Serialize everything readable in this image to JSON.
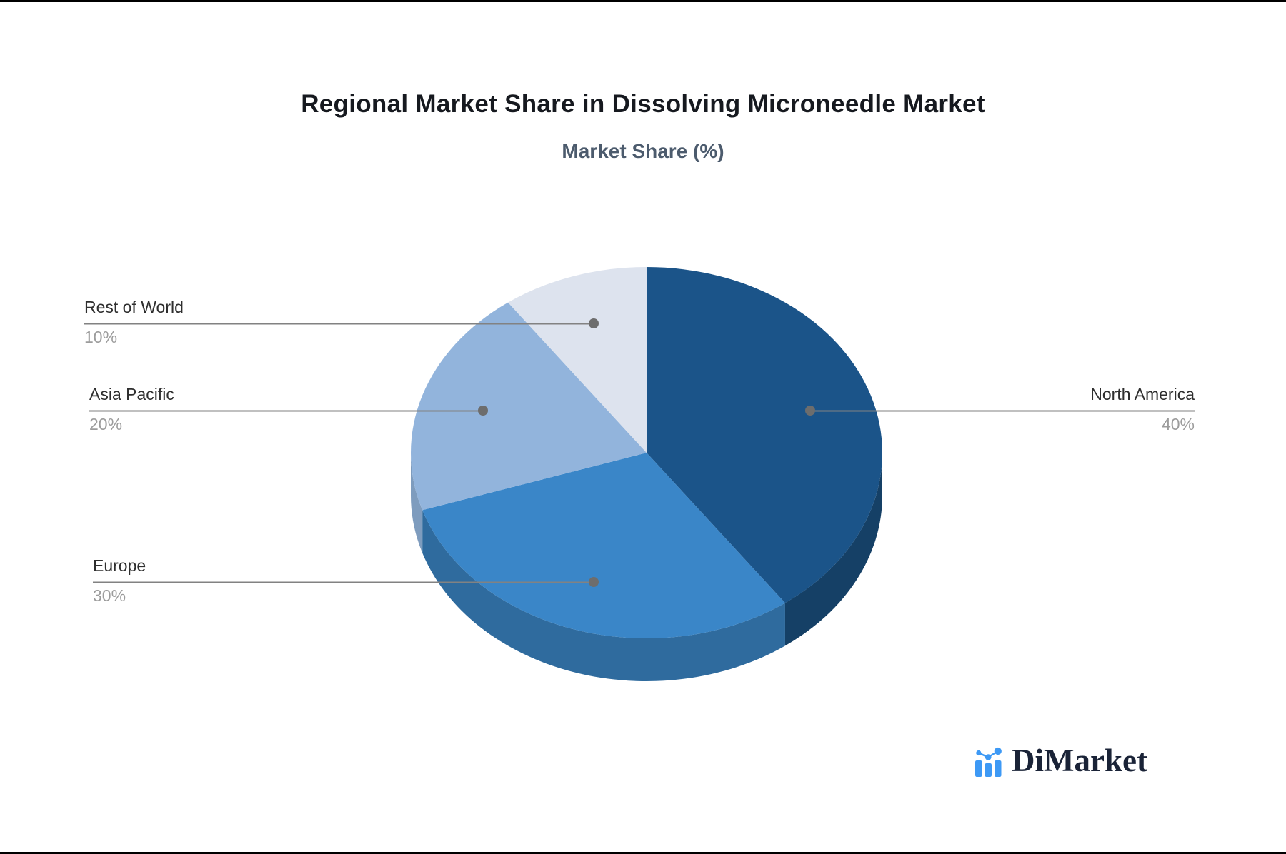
{
  "page": {
    "title": "Regional Market Share in Dissolving Microneedle Market",
    "subtitle": "Market Share (%)"
  },
  "chart_data": {
    "type": "pie",
    "title": "Regional Market Share in Dissolving Microneedle Market",
    "subtitle": "Market Share (%)",
    "unit": "%",
    "effect": "3d",
    "direction": "clockwise",
    "start_angle_deg": 0,
    "legend_position": "callout-labels",
    "slices": [
      {
        "label": "North America",
        "value": 40,
        "display": "40%",
        "color": "#1b5489",
        "side_color": "#154066",
        "label_side": "right"
      },
      {
        "label": "Europe",
        "value": 30,
        "display": "30%",
        "color": "#3a86c8",
        "side_color": "#2f6b9e",
        "label_side": "left"
      },
      {
        "label": "Asia Pacific",
        "value": 20,
        "display": "20%",
        "color": "#92b4dc",
        "side_color": "#7e9cbe",
        "label_side": "left"
      },
      {
        "label": "Rest of World",
        "value": 10,
        "display": "10%",
        "color": "#dde3ee",
        "side_color": "#b8c0d2",
        "label_side": "left"
      }
    ],
    "label_text_color": "#2e2e2e",
    "percent_text_color": "#9c9c9c",
    "connector_color": "#828282",
    "connector_dot_color": "#6d6d6d"
  },
  "branding": {
    "logo_text": "DiMarket",
    "logo_icon": "bar-line-chart-icon",
    "logo_text_color": "#1a2337",
    "logo_icon_color": "#3d99f5"
  }
}
